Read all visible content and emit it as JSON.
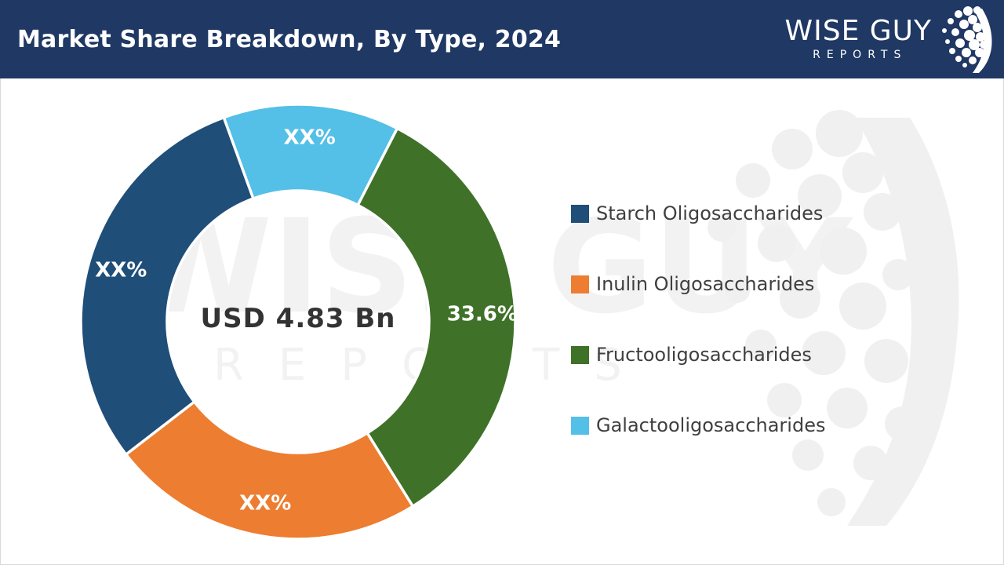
{
  "header": {
    "title": "Market Share Breakdown, By Type, 2024",
    "bg_color": "#1f3864",
    "logo": {
      "line1": "WISE GUY",
      "line2": "REPORTS"
    }
  },
  "watermark": {
    "line1": "WISE GUY",
    "line2": "REPORTS"
  },
  "chart_data": {
    "type": "pie",
    "subtype": "donut",
    "title": "Market Share Breakdown, By Type, 2024",
    "center_label": "USD 4.83 Bn",
    "start_angle_deg": -20,
    "direction": "clockwise",
    "outer_radius_px": 277,
    "inner_radius_px": 167,
    "label_radius_px": 235,
    "slices": [
      {
        "label": "Galactooligosaccharides",
        "display_value": "XX%",
        "pct": 13.1,
        "color": "#54bfe7"
      },
      {
        "label": "Fructooligosaccharides",
        "display_value": "33.6%",
        "pct": 33.6,
        "color": "#3f7228"
      },
      {
        "label": "Inulin Oligosaccharides",
        "display_value": "XX%",
        "pct": 23.4,
        "color": "#ed7d31"
      },
      {
        "label": "Starch Oligosaccharides",
        "display_value": "XX%",
        "pct": 29.9,
        "color": "#1f4e79"
      }
    ]
  },
  "legend": {
    "items": [
      {
        "label": "Starch Oligosaccharides",
        "color": "#1f4e79"
      },
      {
        "label": "Inulin Oligosaccharides",
        "color": "#ed7d31"
      },
      {
        "label": "Fructooligosaccharides",
        "color": "#3f7228"
      },
      {
        "label": "Galactooligosaccharides",
        "color": "#54bfe7"
      }
    ]
  }
}
